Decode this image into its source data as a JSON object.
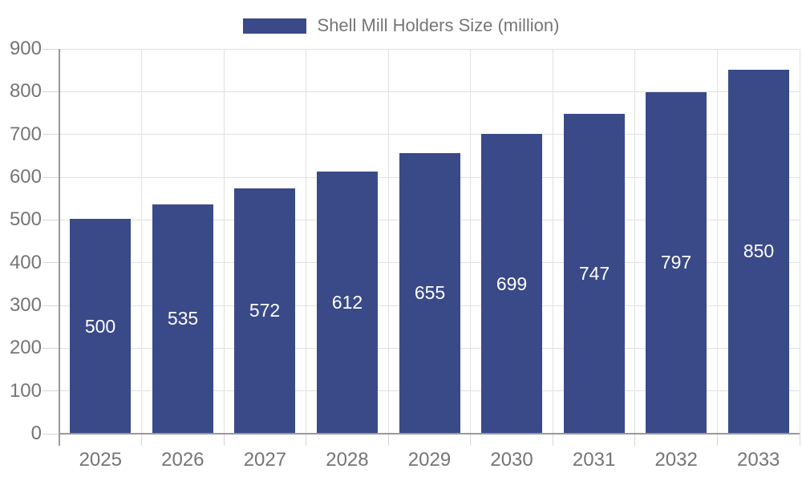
{
  "legend": {
    "label": "Shell Mill Holders Size (million)"
  },
  "chart_data": {
    "type": "bar",
    "title": "",
    "xlabel": "",
    "ylabel": "",
    "categories": [
      "2025",
      "2026",
      "2027",
      "2028",
      "2029",
      "2030",
      "2031",
      "2032",
      "2033"
    ],
    "series": [
      {
        "name": "Shell Mill Holders Size (million)",
        "values": [
          500,
          535,
          572,
          612,
          655,
          699,
          747,
          797,
          850
        ]
      }
    ],
    "values": [
      500,
      535,
      572,
      612,
      655,
      699,
      747,
      797,
      850
    ],
    "value_labels_shown": true,
    "ylim": [
      0,
      900
    ],
    "yticks": [
      0,
      100,
      200,
      300,
      400,
      500,
      600,
      700,
      800,
      900
    ],
    "grid": true,
    "legend_position": "top-center"
  },
  "colors": {
    "background": "#ffffff",
    "bar": "#3a4a88",
    "grid": "#e0e0e0",
    "tick": "#d6d6d6",
    "axis": "#999999",
    "axis_label": "#757575",
    "value_label": "#ffffff"
  }
}
